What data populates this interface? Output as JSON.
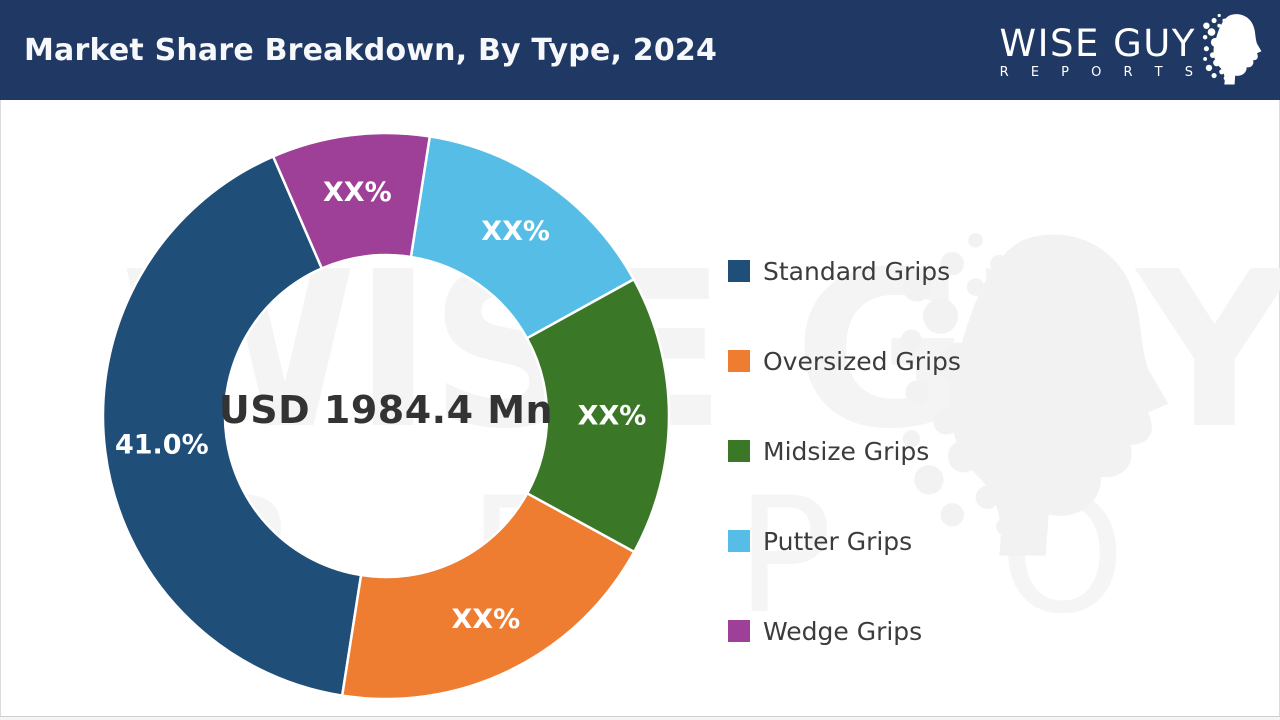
{
  "header": {
    "title": "Market Share Breakdown, By Type, 2024",
    "background_color": "#203864",
    "logo": {
      "line1": "WISE GUY",
      "line2": "R E P O R T S"
    }
  },
  "watermark": {
    "line1": "WISE GUY",
    "line2": "R E P O R T S"
  },
  "chart_data": {
    "type": "pie",
    "variant": "donut",
    "title": "Market Share Breakdown, By Type, 2024",
    "center_label": "USD 1984.4 Mn",
    "legend_position": "right",
    "direction": "counterclockwise",
    "start_angle_deg": 113.5,
    "categories": [
      "Standard Grips",
      "Oversized Grips",
      "Midsize Grips",
      "Putter Grips",
      "Wedge Grips"
    ],
    "segments": [
      {
        "label": "Standard Grips",
        "display_value": "41.0%",
        "pct_estimate": 41.0,
        "color": "#1f4e79"
      },
      {
        "label": "Oversized Grips",
        "display_value": "XX%",
        "pct_estimate": 19.5,
        "color": "#ee7d31"
      },
      {
        "label": "Midsize Grips",
        "display_value": "XX%",
        "pct_estimate": 16.0,
        "color": "#3a7828"
      },
      {
        "label": "Putter Grips",
        "display_value": "XX%",
        "pct_estimate": 14.5,
        "color": "#56bde7"
      },
      {
        "label": "Wedge Grips",
        "display_value": "XX%",
        "pct_estimate": 9.0,
        "color": "#9e4098"
      }
    ]
  }
}
